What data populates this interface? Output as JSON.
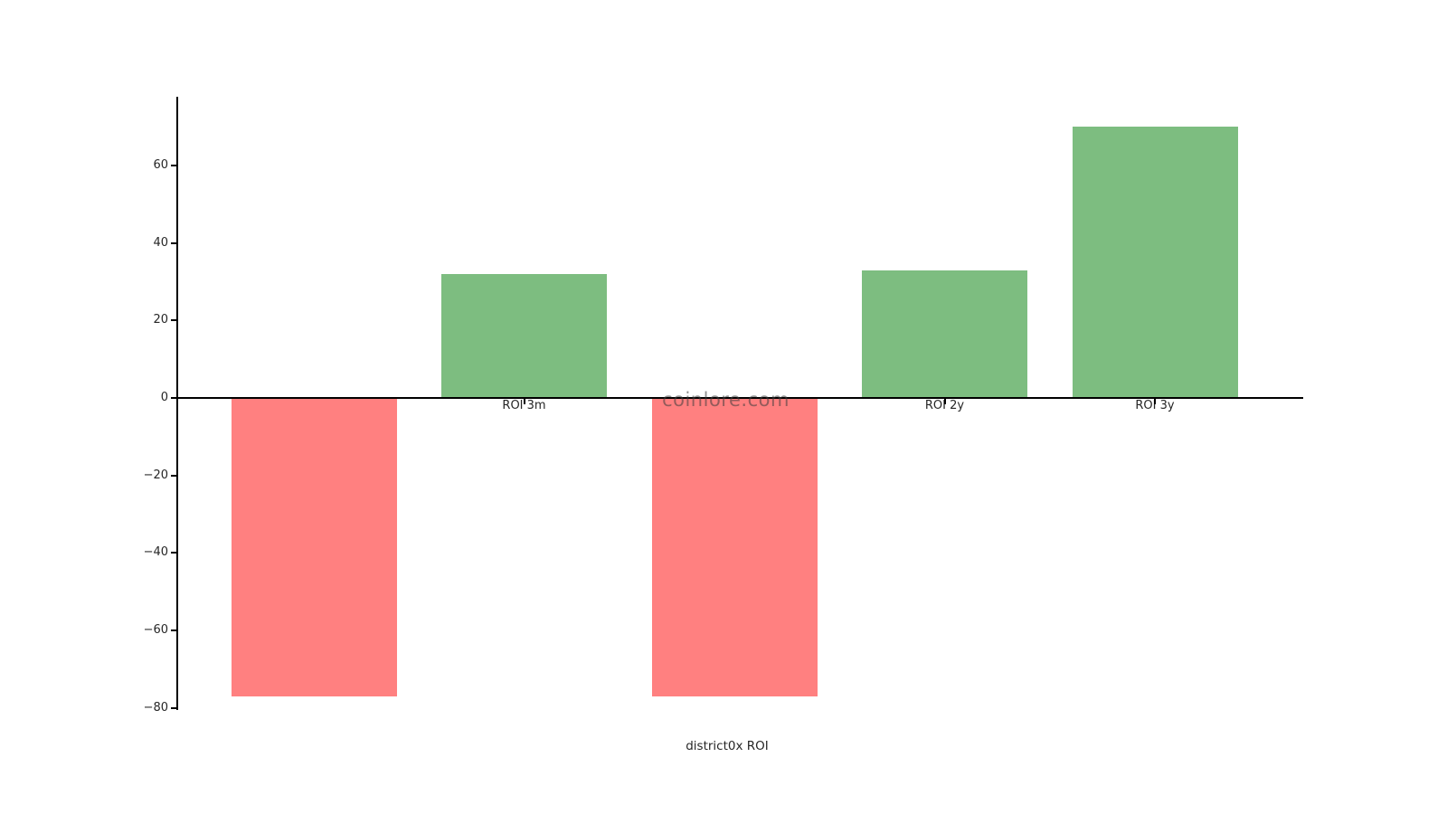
{
  "chart_data": {
    "type": "bar",
    "title": "district0x ROI",
    "xlabel": "",
    "ylabel": "",
    "grid": false,
    "legend_position": "none",
    "categories": [
      "",
      "ROI 3m",
      "",
      "ROI 2y",
      "ROI 3y"
    ],
    "values": [
      -77,
      32,
      -77,
      33,
      70
    ],
    "bars": [
      {
        "label": "",
        "value": -77,
        "label_visible": false
      },
      {
        "label": "ROI 3m",
        "value": 32,
        "label_visible": true
      },
      {
        "label": "",
        "value": -77,
        "label_visible": false
      },
      {
        "label": "ROI 2y",
        "value": 33,
        "label_visible": true
      },
      {
        "label": "ROI 3y",
        "value": 70,
        "label_visible": true
      }
    ],
    "y_ticks": [
      {
        "label": "60",
        "value": 60
      },
      {
        "label": "40",
        "value": 40
      },
      {
        "label": "20",
        "value": 20
      },
      {
        "label": "0",
        "value": 0
      },
      {
        "label": "−20",
        "value": -20
      },
      {
        "label": "−40",
        "value": -40
      },
      {
        "label": "−60",
        "value": -60
      },
      {
        "label": "−80",
        "value": -80
      }
    ],
    "ylim": [
      -80.5,
      77.5
    ],
    "positive_color": "#7dbd80",
    "negative_color": "#ff8080",
    "axis_color": "#000000"
  },
  "watermark": {
    "text": "coinlore.com"
  }
}
